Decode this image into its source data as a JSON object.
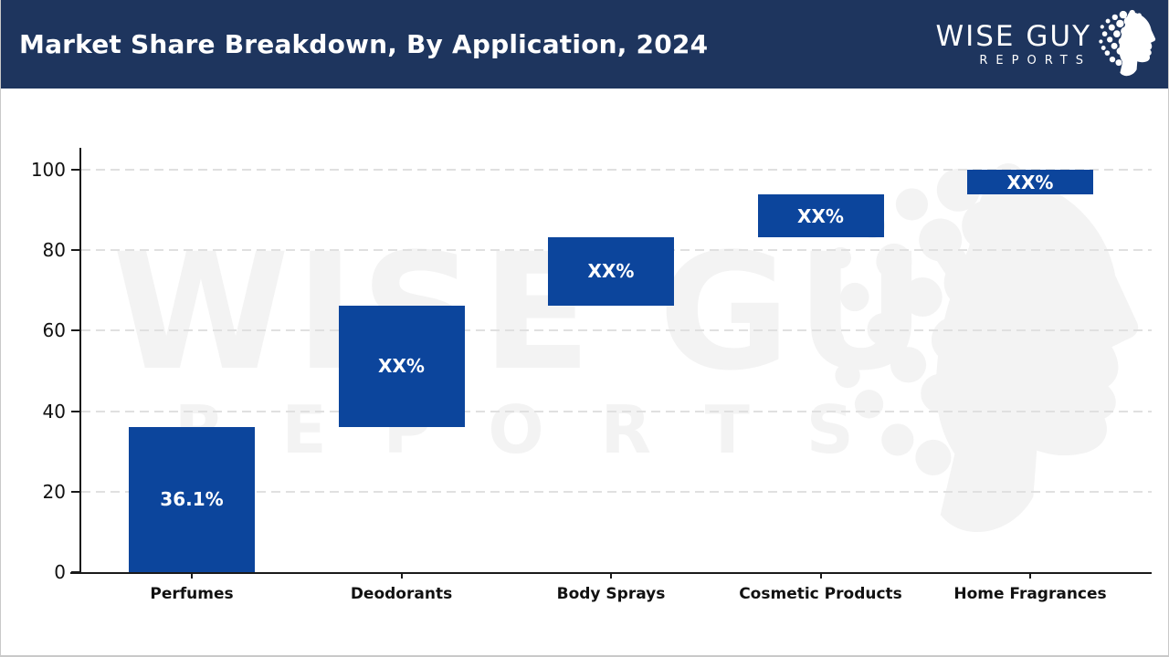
{
  "header": {
    "title": "Market Share Breakdown, By Application, 2024",
    "logo": {
      "brand": "WISE GUY",
      "sub": "REPORTS",
      "head_icon": "dotted-head-profile-icon"
    }
  },
  "watermark": {
    "line1": "WISE GUY",
    "line2": "REPORTS"
  },
  "chart_data": {
    "type": "bar",
    "subtype": "waterfall",
    "title": "Market Share Breakdown, By Application, 2024",
    "xlabel": "",
    "ylabel": "",
    "ylim": [
      0,
      100
    ],
    "yticks": [
      0,
      20,
      40,
      60,
      80,
      100
    ],
    "grid": "horizontal-dashed",
    "legend": "none",
    "categories": [
      "Perfumes",
      "Deodorants",
      "Body Sprays",
      "Cosmetic Products",
      "Home Fragrances"
    ],
    "series": [
      {
        "name": "Market Share",
        "segments": [
          {
            "category": "Perfumes",
            "start": 0,
            "end": 36.1,
            "label": "36.1%"
          },
          {
            "category": "Deodorants",
            "start": 36.1,
            "end": 66.3,
            "label": "XX%"
          },
          {
            "category": "Body Sprays",
            "start": 66.3,
            "end": 83.2,
            "label": "XX%"
          },
          {
            "category": "Cosmetic Products",
            "start": 83.2,
            "end": 93.8,
            "label": "XX%"
          },
          {
            "category": "Home Fragrances",
            "start": 93.8,
            "end": 100,
            "label": "XX%"
          }
        ]
      }
    ]
  },
  "colors": {
    "header_bg": "#1e355e",
    "header_text": "#ffffff",
    "bar_fill": "#0c459c",
    "bar_label": "#ffffff",
    "axis": "#1a1a1a",
    "tick_text": "#111111",
    "gridline": "#e0e0e0",
    "watermark": "#f3f3f3",
    "page_border": "#c9c9c9"
  }
}
